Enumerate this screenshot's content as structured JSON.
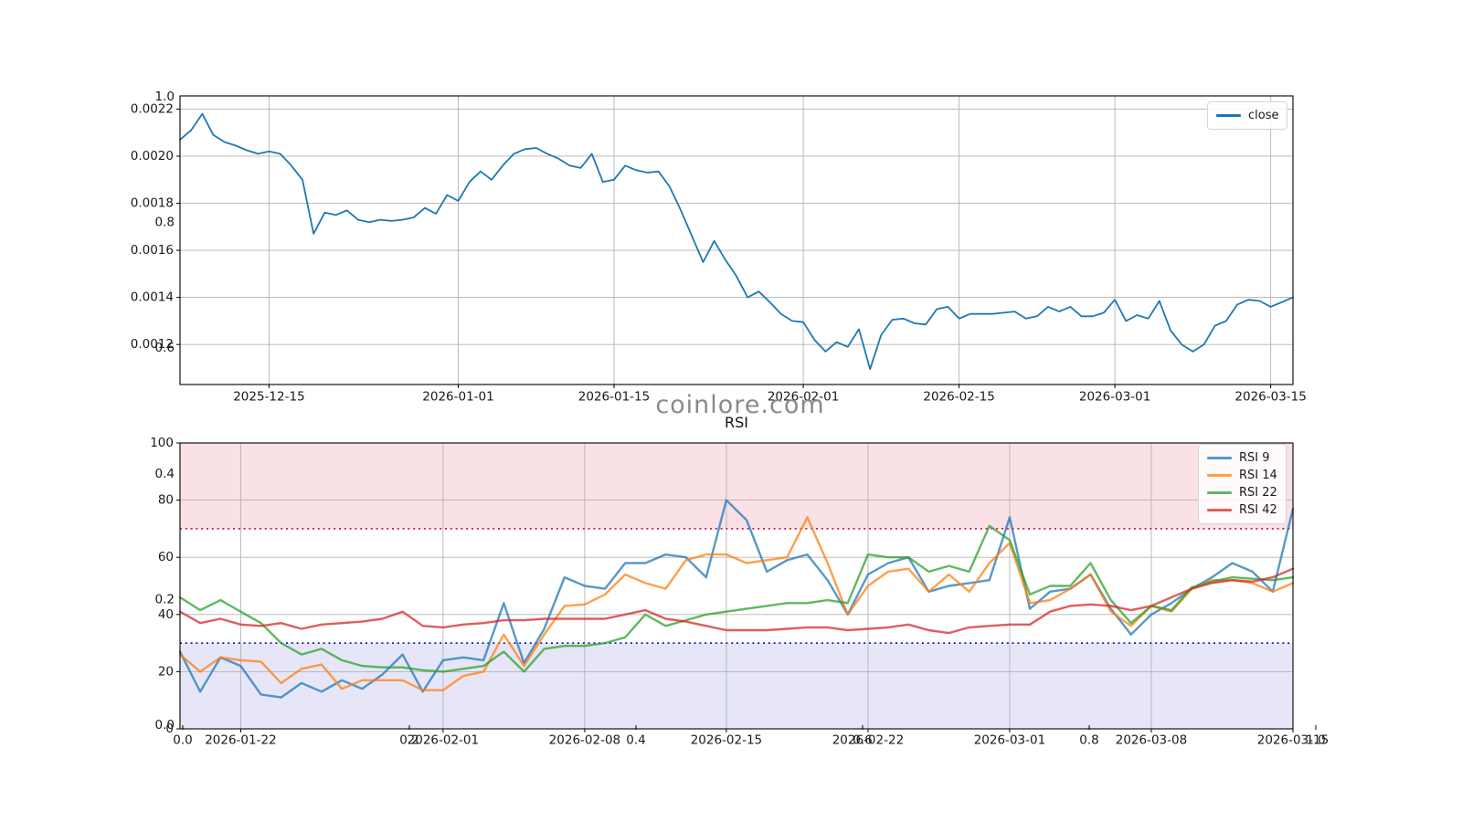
{
  "watermark": "coinlore.com",
  "phantom_axis": {
    "x_labels": [
      "0.0",
      "0.2",
      "0.4",
      "0.6",
      "0.8",
      "1.0"
    ],
    "y_labels": [
      "1.0",
      "0.8",
      "0.6",
      "0.4",
      "0.2",
      "0.0"
    ]
  },
  "chart_data": [
    {
      "type": "line",
      "title": "",
      "x_tick_labels": [
        "2025-12-15",
        "2026-01-01",
        "2026-01-15",
        "2026-02-01",
        "2026-02-15",
        "2026-03-01",
        "2026-03-15"
      ],
      "x_tick_days": [
        8,
        25,
        39,
        56,
        70,
        84,
        98
      ],
      "x_range_days": 100,
      "ylim": [
        0.00103,
        0.002256
      ],
      "y_ticks": [
        0.0022,
        0.002,
        0.0018,
        0.0016,
        0.0014,
        0.0012
      ],
      "y_tick_labels": [
        "0.0022",
        "0.0020",
        "0.0018",
        "0.0016",
        "0.0014",
        "0.0012"
      ],
      "grid": true,
      "legend_position": "upper right",
      "series": [
        {
          "name": "close",
          "color": "#1f77b4",
          "opacity": 1,
          "width": 1.8,
          "values": [
            0.00207,
            0.00211,
            0.00218,
            0.00209,
            0.00206,
            0.002045,
            0.002025,
            0.00201,
            0.00202,
            0.00201,
            0.00196,
            0.0019,
            0.00167,
            0.00176,
            0.00175,
            0.00177,
            0.00173,
            0.00172,
            0.00173,
            0.001725,
            0.00173,
            0.00174,
            0.00178,
            0.001755,
            0.001835,
            0.00181,
            0.00189,
            0.001935,
            0.0019,
            0.00196,
            0.00201,
            0.00203,
            0.002035,
            0.00201,
            0.00199,
            0.00196,
            0.00195,
            0.00201,
            0.00189,
            0.0019,
            0.00196,
            0.00194,
            0.00193,
            0.001935,
            0.00187,
            0.00177,
            0.00166,
            0.00155,
            0.00164,
            0.00156,
            0.00149,
            0.0014,
            0.001425,
            0.00138,
            0.00133,
            0.0013,
            0.001295,
            0.00122,
            0.00117,
            0.00121,
            0.00119,
            0.001265,
            0.001095,
            0.00124,
            0.001305,
            0.00131,
            0.00129,
            0.001285,
            0.00135,
            0.00136,
            0.00131,
            0.00133,
            0.00133,
            0.00133,
            0.001335,
            0.00134,
            0.00131,
            0.00132,
            0.00136,
            0.00134,
            0.00136,
            0.00132,
            0.00132,
            0.001335,
            0.00139,
            0.0013,
            0.001325,
            0.00131,
            0.001385,
            0.00126,
            0.0012,
            0.00117,
            0.0012,
            0.00128,
            0.0013,
            0.00137,
            0.00139,
            0.001385,
            0.00136,
            0.00138,
            0.0014
          ]
        }
      ]
    },
    {
      "type": "line",
      "title": "RSI",
      "x_tick_labels": [
        "2026-01-22",
        "2026-02-01",
        "2026-02-08",
        "2026-02-15",
        "2026-02-22",
        "2026-03-01",
        "2026-03-08",
        "2026-03-15"
      ],
      "x_tick_days": [
        3,
        13,
        20,
        27,
        34,
        41,
        48,
        55
      ],
      "x_range_days": 55,
      "ylim": [
        0,
        100
      ],
      "y_ticks": [
        100,
        80,
        60,
        40,
        20,
        0
      ],
      "y_tick_labels": [
        "100",
        "80",
        "60",
        "40",
        "20",
        "0"
      ],
      "grid": true,
      "legend_position": "upper right",
      "bands": [
        {
          "from": 70,
          "to": 100,
          "color": "rgba(220,20,60,0.13)",
          "name": "overbought-band"
        },
        {
          "from": 0,
          "to": 30,
          "color": "rgba(60,60,200,0.13)",
          "name": "oversold-band"
        }
      ],
      "hlines": [
        {
          "y": 70,
          "color": "#dc143c",
          "style": "dotted"
        },
        {
          "y": 30,
          "color": "#1414cc",
          "style": "dotted"
        }
      ],
      "series": [
        {
          "name": "RSI 9",
          "color": "#1f77b4",
          "opacity": 0.75,
          "width": 2.4,
          "values": [
            27,
            13,
            25,
            22,
            12,
            11,
            16,
            13,
            17,
            14,
            19,
            26,
            13,
            24,
            25,
            24,
            44,
            23,
            35,
            53,
            50,
            49,
            58,
            58,
            61,
            60,
            53,
            80,
            73,
            55,
            59,
            61,
            52,
            40,
            54,
            58,
            60,
            48,
            50,
            51,
            52,
            74,
            42,
            48,
            49,
            54,
            42,
            33,
            40,
            44,
            49,
            53,
            58,
            55,
            48,
            77
          ]
        },
        {
          "name": "RSI 14",
          "color": "#ff7f0e",
          "opacity": 0.75,
          "width": 2.4,
          "values": [
            26,
            20,
            25,
            24,
            23.5,
            16,
            21,
            22.5,
            14,
            17,
            17,
            17,
            13.5,
            13.5,
            18.5,
            20,
            33,
            22,
            33,
            43,
            43.5,
            47,
            54,
            51,
            49,
            59,
            61,
            61,
            58,
            59,
            60,
            74,
            58,
            40,
            50,
            55,
            56,
            48,
            54,
            48,
            58,
            65,
            44,
            45,
            49,
            54,
            41,
            36,
            43,
            41,
            49,
            52,
            52,
            51,
            48,
            51
          ]
        },
        {
          "name": "RSI 22",
          "color": "#2ca02c",
          "opacity": 0.75,
          "width": 2.4,
          "values": [
            46,
            41.5,
            45,
            41,
            37,
            30,
            26,
            28,
            24,
            22,
            21.5,
            21.5,
            20.5,
            20,
            21,
            22,
            27,
            20,
            28,
            29,
            29,
            30,
            32,
            40,
            36,
            38,
            40,
            41,
            42,
            43,
            44,
            44,
            45,
            44,
            61,
            60,
            60,
            55,
            57,
            55,
            71,
            66,
            47,
            50,
            50,
            58,
            45,
            37,
            43,
            41.5,
            49.5,
            51.5,
            53,
            52.5,
            52,
            53
          ]
        },
        {
          "name": "RSI 42",
          "color": "#d62728",
          "opacity": 0.75,
          "width": 2.4,
          "values": [
            41,
            37,
            38.5,
            36.5,
            36,
            37,
            35,
            36.5,
            37,
            37.5,
            38.5,
            41,
            36,
            35.5,
            36.5,
            37,
            38,
            38,
            38.5,
            38.5,
            38.5,
            38.5,
            40,
            41.5,
            38.5,
            37.5,
            36,
            34.5,
            34.5,
            34.5,
            35,
            35.5,
            35.5,
            34.5,
            35,
            35.5,
            36.5,
            34.5,
            33.5,
            35.5,
            36,
            36.5,
            36.5,
            41,
            43,
            43.5,
            43,
            41.5,
            43,
            46,
            49,
            51,
            52,
            51.5,
            53,
            56
          ]
        }
      ]
    }
  ]
}
